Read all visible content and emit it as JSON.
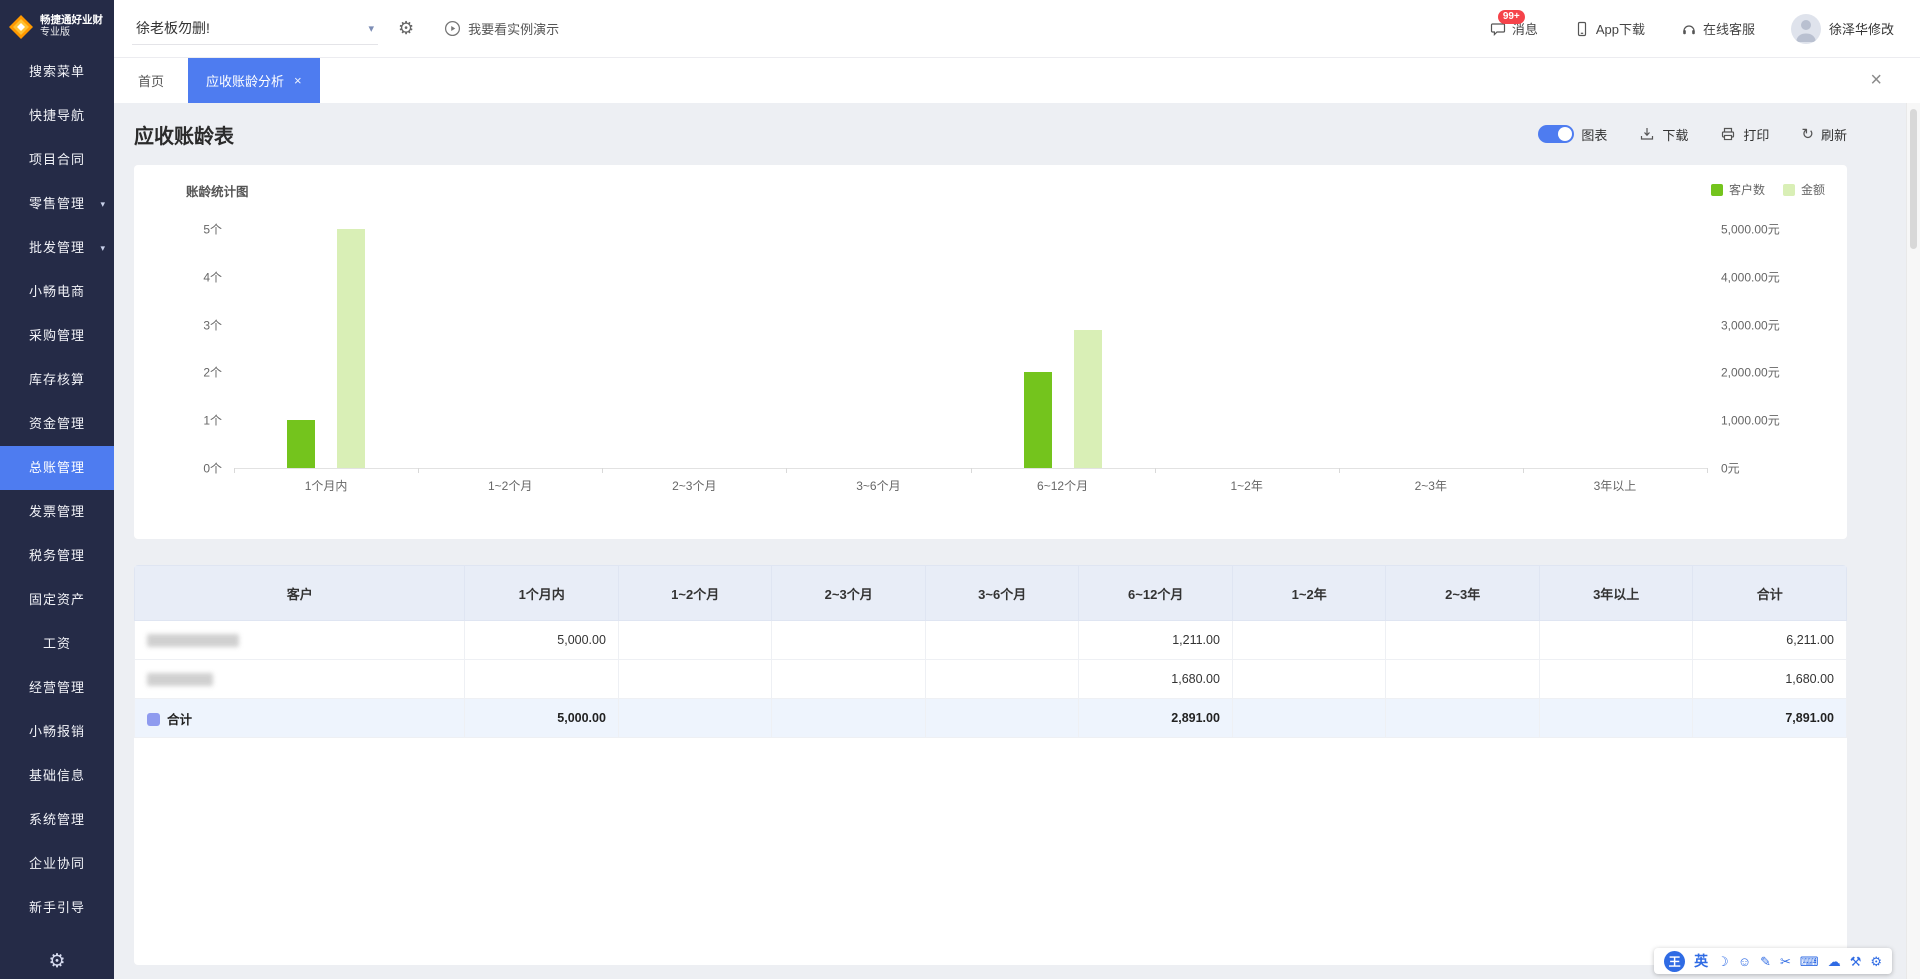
{
  "sidebar": {
    "brand": {
      "line1": "畅捷通好业财",
      "line2": "专业版"
    },
    "items": [
      {
        "label": "搜索菜单"
      },
      {
        "label": "快捷导航"
      },
      {
        "label": "项目合同"
      },
      {
        "label": "零售管理",
        "caret": true
      },
      {
        "label": "批发管理",
        "caret": true
      },
      {
        "label": "小畅电商"
      },
      {
        "label": "采购管理"
      },
      {
        "label": "库存核算"
      },
      {
        "label": "资金管理"
      },
      {
        "label": "总账管理",
        "active": true
      },
      {
        "label": "发票管理"
      },
      {
        "label": "税务管理"
      },
      {
        "label": "固定资产"
      },
      {
        "label": "工资"
      },
      {
        "label": "经营管理"
      },
      {
        "label": "小畅报销"
      },
      {
        "label": "基础信息"
      },
      {
        "label": "系统管理"
      },
      {
        "label": "企业协同"
      },
      {
        "label": "新手引导"
      }
    ]
  },
  "topbar": {
    "company": "徐老板勿删!",
    "demo": "我要看实例演示",
    "messages": "消息",
    "badge": "99+",
    "app_download": "App下载",
    "online_service": "在线客服",
    "username": "徐泽华修改"
  },
  "tabs": [
    {
      "label": "首页",
      "active": false
    },
    {
      "label": "应收账龄分析",
      "active": true,
      "closable": true
    }
  ],
  "page": {
    "title": "应收账龄表",
    "toggle_label": "图表",
    "toggle_on": true,
    "download": "下载",
    "print": "打印",
    "refresh": "刷新"
  },
  "chart_data": {
    "type": "bar",
    "title": "账龄统计图",
    "categories": [
      "1个月内",
      "1~2个月",
      "2~3个月",
      "3~6个月",
      "6~12个月",
      "1~2年",
      "2~3年",
      "3年以上"
    ],
    "series": [
      {
        "name": "客户数",
        "axis": "left",
        "color": "#74c41d",
        "values": [
          1,
          0,
          0,
          0,
          2,
          0,
          0,
          0
        ]
      },
      {
        "name": "金额",
        "axis": "right",
        "color": "#d9efb6",
        "values": [
          5000,
          0,
          0,
          0,
          2891,
          0,
          0,
          0
        ]
      }
    ],
    "left_axis": {
      "max": 5,
      "ticks_top_to_bottom": [
        "5个",
        "4个",
        "3个",
        "2个",
        "1个",
        "0个"
      ]
    },
    "right_axis": {
      "max": 5000,
      "ticks_top_to_bottom": [
        "5,000.00元",
        "4,000.00元",
        "3,000.00元",
        "2,000.00元",
        "1,000.00元",
        "0元"
      ]
    },
    "legend_position": "top-right",
    "grid": false
  },
  "table": {
    "headers": [
      "客户",
      "1个月内",
      "1~2个月",
      "2~3个月",
      "3~6个月",
      "6~12个月",
      "1~2年",
      "2~3年",
      "3年以上",
      "合计"
    ],
    "rows": [
      {
        "customer_redacted": true,
        "values": [
          "5,000.00",
          "",
          "",
          "",
          "1,211.00",
          "",
          "",
          "",
          "6,211.00"
        ]
      },
      {
        "customer_redacted": true,
        "values": [
          "",
          "",
          "",
          "",
          "1,680.00",
          "",
          "",
          "",
          "1,680.00"
        ]
      }
    ],
    "total": {
      "label": "合计",
      "values": [
        "5,000.00",
        "",
        "",
        "",
        "2,891.00",
        "",
        "",
        "",
        "7,891.00"
      ]
    }
  },
  "ime": {
    "lang_circle": "王",
    "mode": "英",
    "icons": [
      {
        "name": "moon-icon",
        "glyph": "☽"
      },
      {
        "name": "smiley-icon",
        "glyph": "☺"
      },
      {
        "name": "pen-icon",
        "glyph": "✎"
      },
      {
        "name": "scissors-icon",
        "glyph": "✂"
      },
      {
        "name": "keyboard-icon",
        "glyph": "⌨"
      },
      {
        "name": "cloud-icon",
        "glyph": "☁"
      },
      {
        "name": "tools-icon",
        "glyph": "⚒"
      },
      {
        "name": "gear-icon",
        "glyph": "⚙"
      }
    ]
  }
}
